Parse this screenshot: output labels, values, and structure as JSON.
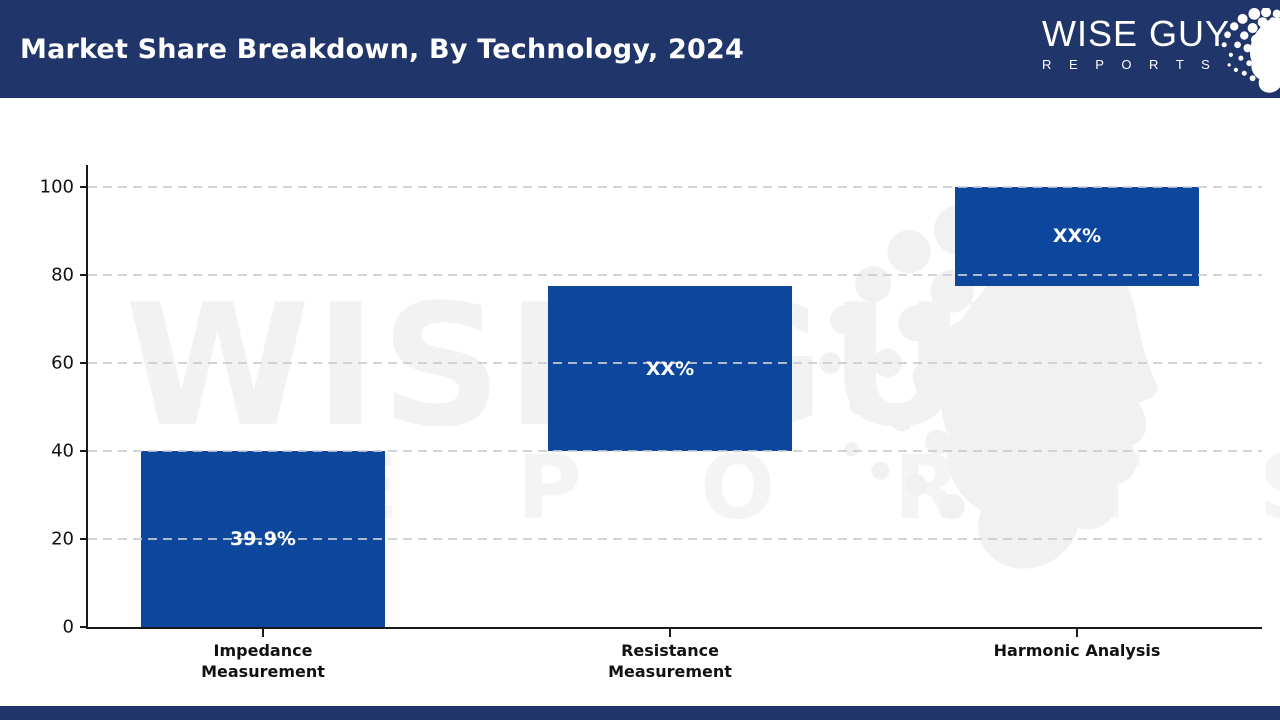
{
  "header": {
    "title": "Market Share Breakdown, By Technology, 2024",
    "logo": {
      "line1": "WISE GUY",
      "line2": "R E P O R T S"
    }
  },
  "watermark": {
    "line1": "WISE GUY",
    "line2": "R E P O R T S"
  },
  "colors": {
    "header_bg": "#20366a",
    "footer_bg": "#20366a",
    "bar": "#0c479d",
    "bar_label": "#ffffff",
    "grid": "#c9cdd3",
    "axis": "#1a1a1a",
    "watermark": "#f2f2f2"
  },
  "chart_data": {
    "type": "bar",
    "subtype": "stacked_waterfall",
    "title": "Market Share Breakdown, By Technology, 2024",
    "categories": [
      "Impedance\nMeasurement",
      "Resistance\nMeasurement",
      "Harmonic Analysis"
    ],
    "segments": [
      {
        "category": "Impedance Measurement",
        "start": 0,
        "end": 39.9,
        "label": "39.9%"
      },
      {
        "category": "Resistance Measurement",
        "start": 39.9,
        "end": 77.3,
        "label": "XX%"
      },
      {
        "category": "Harmonic Analysis",
        "start": 77.3,
        "end": 100,
        "label": "XX%"
      }
    ],
    "ylabel": "",
    "xlabel": "",
    "yticks": [
      0,
      20,
      40,
      60,
      80,
      100
    ],
    "ylim": [
      0,
      100
    ],
    "grid": "horizontal-dashed",
    "legend": "none"
  }
}
